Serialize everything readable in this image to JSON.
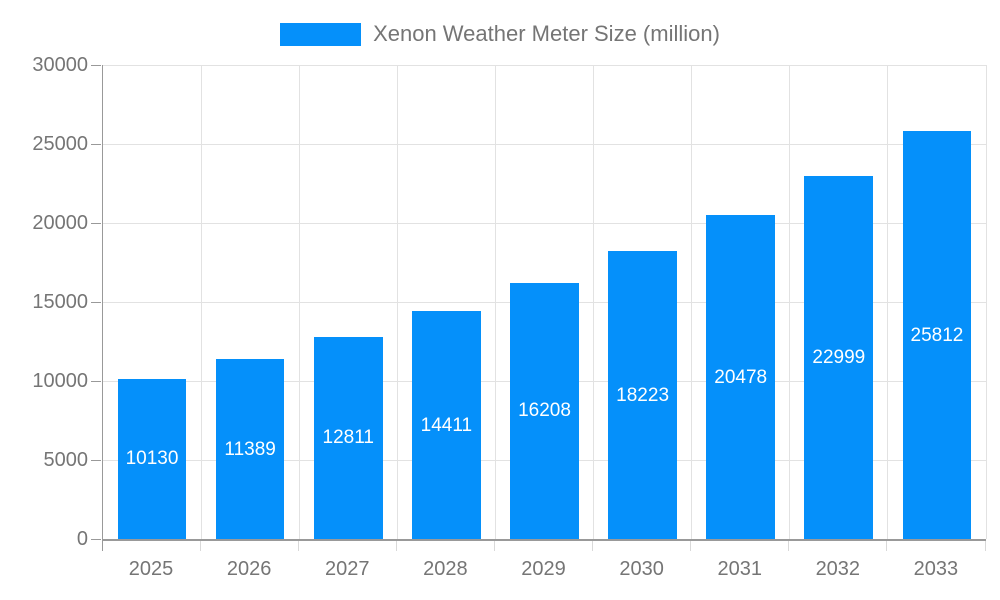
{
  "chart_data": {
    "type": "bar",
    "title": "Xenon Weather Meter Size (million)",
    "legend": {
      "label": "Xenon Weather Meter Size (million)",
      "position": "top-center"
    },
    "categories": [
      "2025",
      "2026",
      "2027",
      "2028",
      "2029",
      "2030",
      "2031",
      "2032",
      "2033"
    ],
    "series": [
      {
        "name": "Xenon Weather Meter Size (million)",
        "values": [
          10130,
          11389,
          12811,
          14411,
          16208,
          18223,
          20478,
          22999,
          25812
        ]
      }
    ],
    "value_labels_shown": true,
    "xlabel": "",
    "ylabel": "",
    "ylim": [
      0,
      30000
    ],
    "yticks": [
      0,
      5000,
      10000,
      15000,
      20000,
      25000,
      30000
    ],
    "grid": "both",
    "colors": {
      "bar": "#0590fa",
      "bar_value_text": "#ffffff",
      "axis_line": "#999999",
      "gridline": "#e2e2e2",
      "tick_label": "#757575",
      "legend_text": "#757575",
      "background": "#ffffff"
    }
  }
}
